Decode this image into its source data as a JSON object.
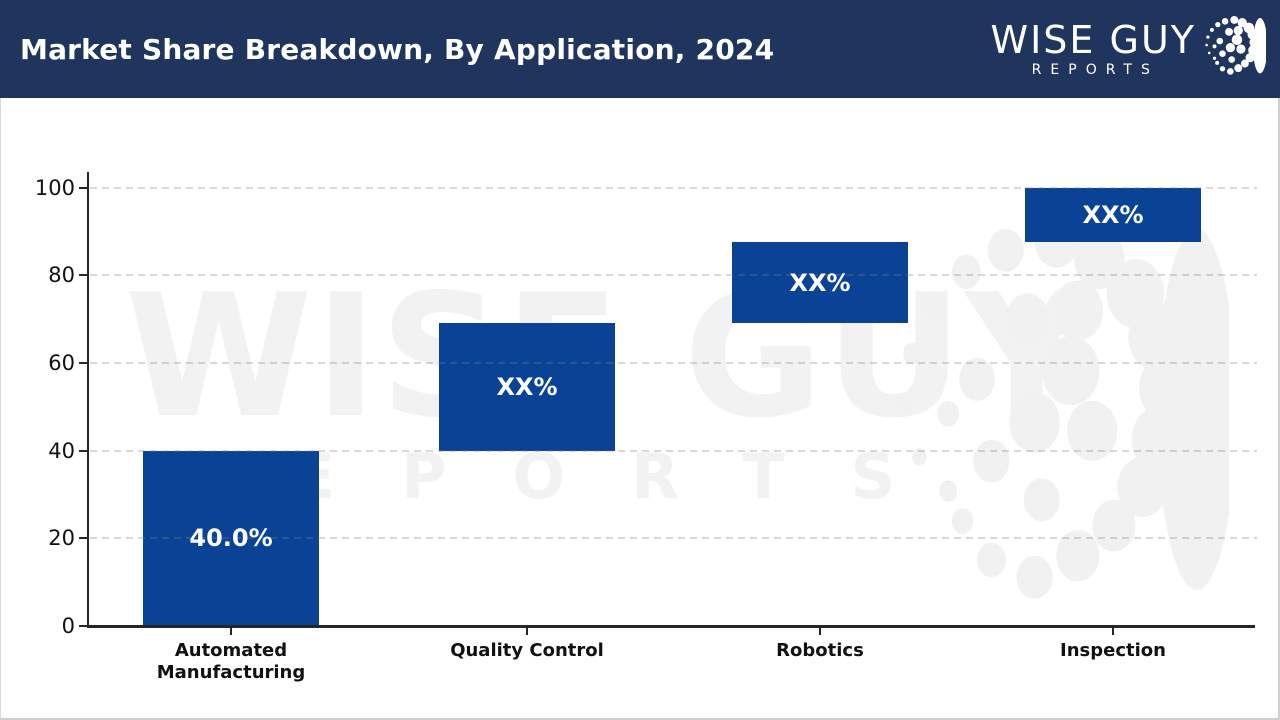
{
  "header": {
    "title": "Market Share Breakdown, By Application, 2024",
    "bg_color": "#1f355e",
    "logo": {
      "wordmark": "WISE GUY",
      "subtitle": "REPORTS"
    }
  },
  "watermark": {
    "wordmark": "WISE GUY",
    "subtitle": "REPORTS"
  },
  "colors": {
    "header_bg": "#1f355e",
    "bar": "#0a4296",
    "bar_label": "#ffffff",
    "axis": "#262626",
    "grid": "rgba(125,125,125,0.30)",
    "watermark": "#f1f1f1"
  },
  "chart_data": {
    "type": "bar",
    "subtype": "floating-waterfall",
    "title": "Market Share Breakdown, By Application, 2024",
    "categories": [
      "Automated Manufacturing",
      "Quality Control",
      "Robotics",
      "Inspection"
    ],
    "bars": [
      {
        "category": "Automated Manufacturing",
        "start": 0,
        "end": 40,
        "label": "40.0%"
      },
      {
        "category": "Quality Control",
        "start": 40,
        "end": 69,
        "label": "XX%"
      },
      {
        "category": "Robotics",
        "start": 69,
        "end": 87.5,
        "label": "XX%"
      },
      {
        "category": "Inspection",
        "start": 87.5,
        "end": 100,
        "label": "XX%"
      }
    ],
    "ylim": [
      0,
      100
    ],
    "yticks": [
      0,
      20,
      40,
      60,
      80,
      100
    ],
    "xlabel": "",
    "ylabel": "",
    "grid": "horizontal-dashed",
    "legend": "none"
  }
}
